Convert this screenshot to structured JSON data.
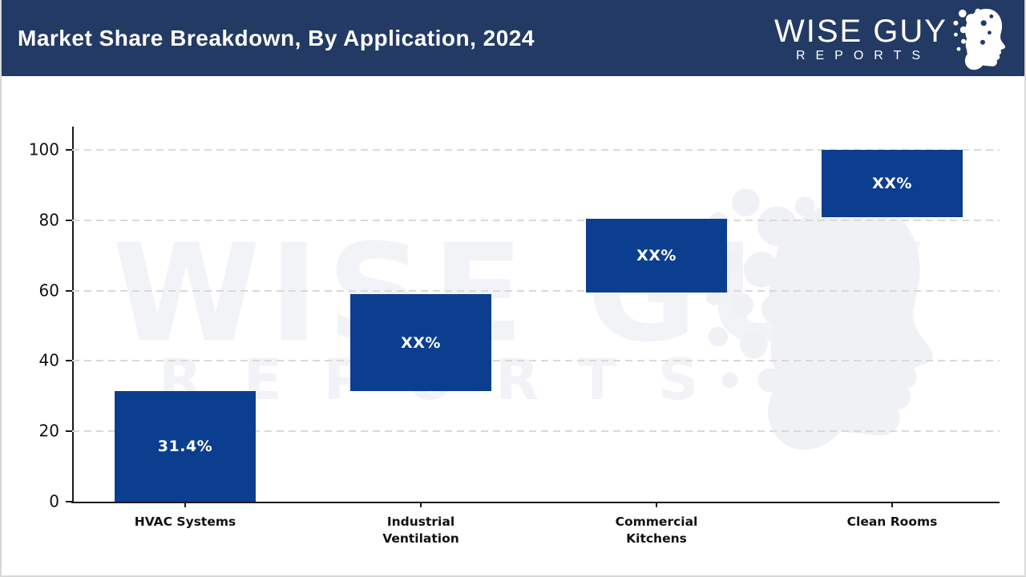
{
  "header": {
    "title": "Market Share Breakdown, By Application, 2024",
    "logo": {
      "name": "WISE GUY",
      "sub": "REPORTS"
    }
  },
  "watermark": {
    "line1": "WISE GUY",
    "line2": "REPORTS"
  },
  "colors": {
    "header_bg": "#233a64",
    "bar": "#0c3e8f",
    "bar_label": "#ffffff",
    "grid": "#d9d9d9",
    "axis": "#1a1a1a",
    "watermark": "#f2f3f6",
    "border": "#d8d8d8"
  },
  "chart_data": {
    "type": "bar",
    "subtype": "waterfall",
    "title": "Market Share Breakdown, By Application, 2024",
    "categories": [
      "HVAC Systems",
      "Industrial Ventilation",
      "Commercial Kitchens",
      "Clean Rooms"
    ],
    "bars": [
      {
        "category": "HVAC Systems",
        "start": 0,
        "end": 31.4,
        "label": "31.4%"
      },
      {
        "category": "Industrial Ventilation",
        "start": 31.4,
        "end": 59,
        "label": "XX%"
      },
      {
        "category": "Commercial Kitchens",
        "start": 59.5,
        "end": 80.5,
        "label": "XX%"
      },
      {
        "category": "Clean Rooms",
        "start": 80.8,
        "end": 100,
        "label": "XX%"
      }
    ],
    "yticks": [
      0,
      20,
      40,
      60,
      80,
      100
    ],
    "ylim": [
      0,
      105
    ],
    "xlabel": "",
    "ylabel": "",
    "grid": "horizontal-dashed",
    "legend": "none"
  }
}
